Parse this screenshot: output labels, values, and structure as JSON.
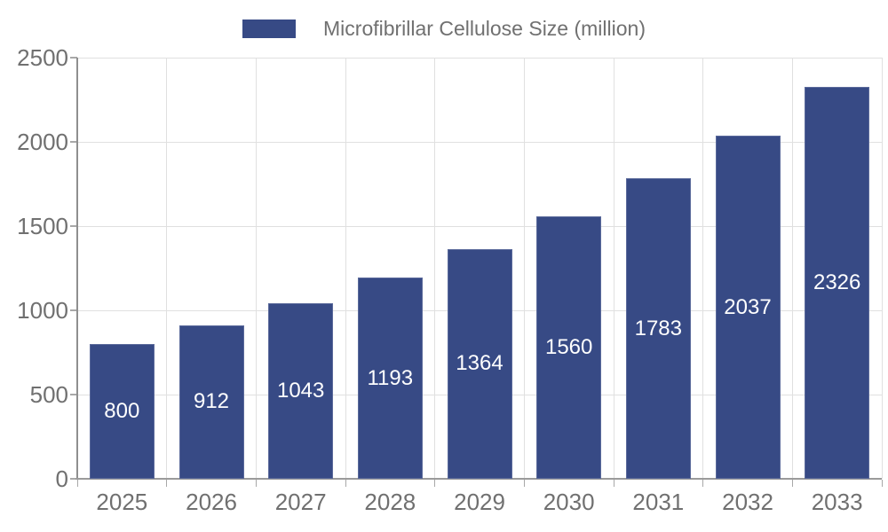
{
  "legend": {
    "label": "Microfibrillar Cellulose Size (million)"
  },
  "colors": {
    "bar": "#374a85",
    "bar_label": "#ffffff",
    "axis_text": "#707070",
    "grid": "#e0e0e0",
    "axis_line_y": "#8f8f8f",
    "axis_line_x": "#9a9a9a",
    "tick": "#a8a8a8",
    "background": "#ffffff"
  },
  "chart_data": {
    "type": "bar",
    "title": "Microfibrillar Cellulose Size (million)",
    "categories": [
      "2025",
      "2026",
      "2027",
      "2028",
      "2029",
      "2030",
      "2031",
      "2032",
      "2033"
    ],
    "values": [
      800,
      912,
      1043,
      1193,
      1364,
      1560,
      1783,
      2037,
      2326
    ],
    "series_name": "Microfibrillar Cellulose Size (million)",
    "xlabel": "",
    "ylabel": "",
    "ylim": [
      0,
      2500
    ],
    "yticks": [
      0,
      500,
      1000,
      1500,
      2000,
      2500
    ],
    "grid": true,
    "bar_value_labels": true,
    "legend_position": "top-center"
  }
}
